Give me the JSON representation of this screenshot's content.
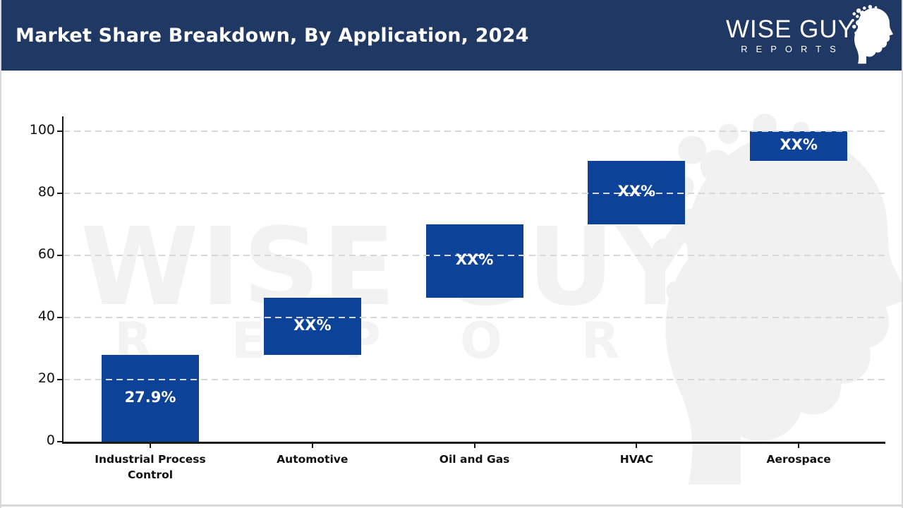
{
  "header": {
    "title": "Market Share Breakdown, By Application, 2024",
    "logo": {
      "line1": "WISE GUY",
      "line2": "REPORTS"
    }
  },
  "watermark": {
    "line1": "WISE GUY",
    "line2": "R E P O R T S"
  },
  "chart_data": {
    "type": "bar",
    "subtype": "waterfall",
    "title": "Market Share Breakdown, By Application, 2024",
    "categories": [
      "Industrial Process Control",
      "Automotive",
      "Oil and Gas",
      "HVAC",
      "Aerospace"
    ],
    "segments": [
      {
        "category": "Industrial Process Control",
        "start": 0,
        "end": 27.9,
        "label": "27.9%"
      },
      {
        "category": "Automotive",
        "start": 27.9,
        "end": 46.4,
        "label": "XX%"
      },
      {
        "category": "Oil and Gas",
        "start": 46.4,
        "end": 69.9,
        "label": "XX%"
      },
      {
        "category": "HVAC",
        "start": 69.9,
        "end": 90.5,
        "label": "XX%"
      },
      {
        "category": "Aerospace",
        "start": 90.5,
        "end": 100,
        "label": "XX%"
      }
    ],
    "yticks": [
      0,
      20,
      40,
      60,
      80,
      100
    ],
    "ylim": [
      0,
      104.8
    ],
    "xlabel": "",
    "ylabel": "",
    "grid": "dashed-horizontal",
    "legend": "none",
    "bar_color": "#0d4299",
    "colors": {
      "header_bg": "#203864",
      "axis": "#1a1a1a",
      "gridline": "#d8d8d8",
      "tick_text": "#111111",
      "bar_label_text": "#ffffff",
      "watermark": "#f2f2f2"
    }
  }
}
